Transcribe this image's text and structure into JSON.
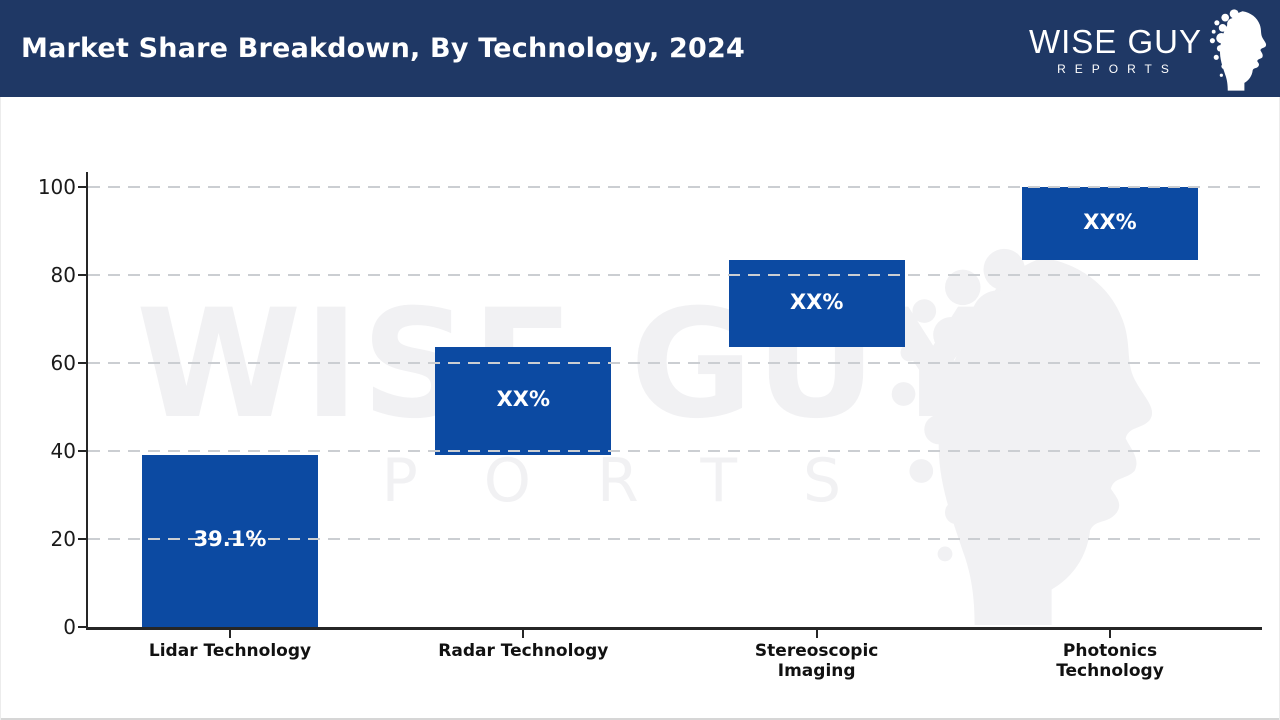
{
  "header": {
    "title": "Market Share Breakdown, By Technology, 2024",
    "logo": {
      "line1": "WISE GUY",
      "line2": "REPORTS"
    }
  },
  "watermark": {
    "line1": "WISE GUY",
    "line2": "REPORTS"
  },
  "chart_data": {
    "type": "bar",
    "subtype": "waterfall",
    "title": "Market Share Breakdown, By Technology, 2024",
    "xlabel": "",
    "ylabel": "",
    "ylim": [
      0,
      100
    ],
    "yticks": [
      0,
      20,
      40,
      60,
      80,
      100
    ],
    "grid": "horizontal dashed, drawn over bars",
    "legend": "none",
    "categories": [
      "Lidar Technology",
      "Radar Technology",
      "Stereoscopic Imaging",
      "Photonics Technology"
    ],
    "segments": [
      {
        "category": "Lidar Technology",
        "label_lines": [
          "Lidar Technology"
        ],
        "start": 0,
        "end": 39.1,
        "value_label": "39.1%"
      },
      {
        "category": "Radar Technology",
        "label_lines": [
          "Radar Technology"
        ],
        "start": 39.1,
        "end": 63.6,
        "value_label": "XX%"
      },
      {
        "category": "Stereoscopic Imaging",
        "label_lines": [
          "Stereoscopic",
          "Imaging"
        ],
        "start": 63.6,
        "end": 83.4,
        "value_label": "XX%"
      },
      {
        "category": "Photonics Technology",
        "label_lines": [
          "Photonics",
          "Technology"
        ],
        "start": 83.4,
        "end": 100,
        "value_label": "XX%"
      }
    ]
  },
  "colors": {
    "header_bg": "#1f3865",
    "bar_blue": "#0c4aa2",
    "bar_label": "#ffffff",
    "grid_gray": "#cbced2",
    "axis_dark": "#262626",
    "watermark_gray": "#f1f1f3"
  }
}
